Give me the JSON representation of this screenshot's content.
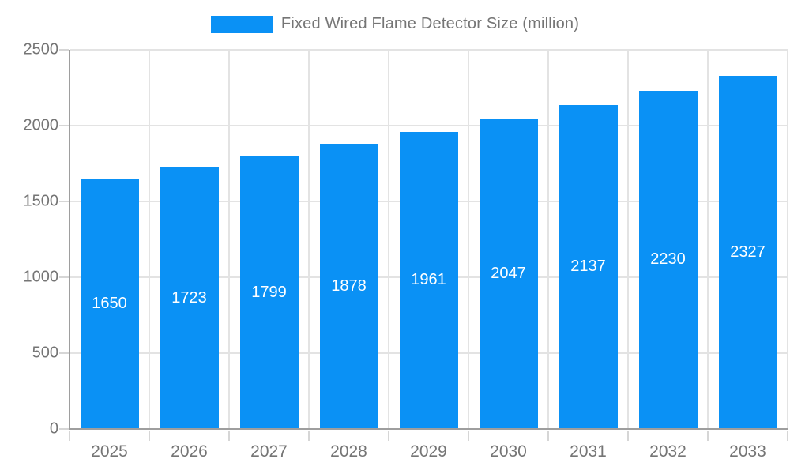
{
  "legend": {
    "label": "Fixed Wired Flame Detector Size (million)"
  },
  "colors": {
    "bar": "#0a91f5",
    "grid": "#e3e3e3",
    "axis": "#9e9e9e",
    "tick": "#d6d6d6",
    "text": "#757575",
    "bar_label": "#ffffff",
    "background": "#ffffff"
  },
  "chart_data": {
    "type": "bar",
    "title": "",
    "legend": "Fixed Wired Flame Detector Size (million)",
    "categories": [
      "2025",
      "2026",
      "2027",
      "2028",
      "2029",
      "2030",
      "2031",
      "2032",
      "2033"
    ],
    "values": [
      1650,
      1723,
      1799,
      1878,
      1961,
      2047,
      2137,
      2230,
      2327
    ],
    "xlabel": "",
    "ylabel": "",
    "ylim": [
      0,
      2500
    ],
    "ytick_interval": 500,
    "yticks": [
      "0",
      "500",
      "1000",
      "1500",
      "2000",
      "2500"
    ],
    "grid": true,
    "legend_position": "top",
    "value_label_position": "inside-center"
  }
}
